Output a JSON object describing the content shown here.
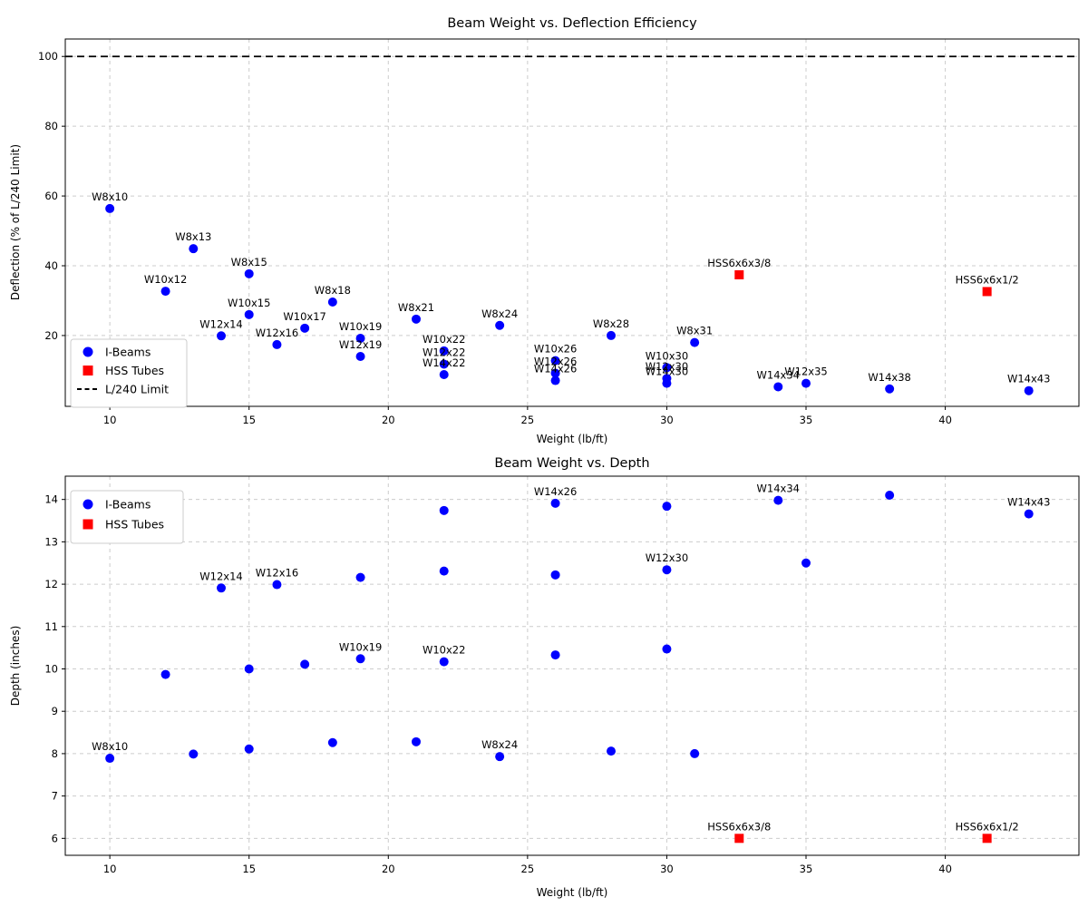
{
  "figure_background": "#ffffff",
  "colors": {
    "ibeams": "#0000ff",
    "hss_tubes": "#ff0000",
    "reference_line": "#000000",
    "grid": "#cccccc"
  },
  "chart_data": [
    {
      "type": "scatter",
      "title": "Beam Weight vs. Deflection Efficiency",
      "xlabel": "Weight (lb/ft)",
      "ylabel": "Deflection (% of L/240 Limit)",
      "xlim": [
        8.4,
        44.8
      ],
      "ylim": [
        -0.3,
        105
      ],
      "xticks": [
        10,
        15,
        20,
        25,
        30,
        35,
        40
      ],
      "yticks": [
        20,
        40,
        60,
        80,
        100
      ],
      "grid": true,
      "ref_line": {
        "y": 100,
        "label": "L/240 Limit",
        "color": "#000000",
        "style": "dashed"
      },
      "legend": {
        "position": "lower-left",
        "items": [
          {
            "label": "I-Beams",
            "marker": "circle",
            "color": "#0000ff"
          },
          {
            "label": "HSS Tubes",
            "marker": "square",
            "color": "#ff0000"
          },
          {
            "label": "L/240 Limit",
            "marker": "dashed-line",
            "color": "#000000"
          }
        ]
      },
      "series": [
        {
          "name": "I-Beams",
          "marker": "circle",
          "color": "#0000ff",
          "points": [
            {
              "label": "W8x10",
              "x": 10,
              "y": 56.4,
              "annotate": true
            },
            {
              "label": "W10x12",
              "x": 12,
              "y": 32.7,
              "annotate": true
            },
            {
              "label": "W8x13",
              "x": 13,
              "y": 44.9,
              "annotate": true
            },
            {
              "label": "W12x14",
              "x": 14,
              "y": 19.9,
              "annotate": true
            },
            {
              "label": "W8x15",
              "x": 15,
              "y": 37.7,
              "annotate": true
            },
            {
              "label": "W10x15",
              "x": 15,
              "y": 26.0,
              "annotate": true
            },
            {
              "label": "W12x16",
              "x": 16,
              "y": 17.4,
              "annotate": true
            },
            {
              "label": "W10x17",
              "x": 17,
              "y": 22.1,
              "annotate": true
            },
            {
              "label": "W8x18",
              "x": 18,
              "y": 29.6,
              "annotate": true
            },
            {
              "label": "W10x19",
              "x": 19,
              "y": 19.2,
              "annotate": true
            },
            {
              "label": "W12x19",
              "x": 19,
              "y": 14.0,
              "annotate": true
            },
            {
              "label": "W8x21",
              "x": 21,
              "y": 24.7,
              "annotate": true
            },
            {
              "label": "W10x22",
              "x": 22,
              "y": 15.6,
              "annotate": true
            },
            {
              "label": "W12x22",
              "x": 22,
              "y": 11.8,
              "annotate": true
            },
            {
              "label": "W14x22",
              "x": 22,
              "y": 8.8,
              "annotate": true
            },
            {
              "label": "W8x24",
              "x": 24,
              "y": 22.9,
              "annotate": true
            },
            {
              "label": "W10x26",
              "x": 26,
              "y": 12.8,
              "annotate": true
            },
            {
              "label": "W12x26",
              "x": 26,
              "y": 9.2,
              "annotate": true
            },
            {
              "label": "W14x26",
              "x": 26,
              "y": 7.1,
              "annotate": true
            },
            {
              "label": "W8x28",
              "x": 28,
              "y": 20.0,
              "annotate": true
            },
            {
              "label": "W10x30",
              "x": 30,
              "y": 10.8,
              "annotate": true
            },
            {
              "label": "W12x30",
              "x": 30,
              "y": 7.7,
              "annotate": true
            },
            {
              "label": "W14x30",
              "x": 30,
              "y": 6.3,
              "annotate": true
            },
            {
              "label": "W8x31",
              "x": 31,
              "y": 18.0,
              "annotate": true
            },
            {
              "label": "W14x34",
              "x": 34,
              "y": 5.3,
              "annotate": true
            },
            {
              "label": "W12x35",
              "x": 35,
              "y": 6.3,
              "annotate": true
            },
            {
              "label": "W14x38",
              "x": 38,
              "y": 4.7,
              "annotate": true
            },
            {
              "label": "W14x43",
              "x": 43,
              "y": 4.2,
              "annotate": true
            }
          ]
        },
        {
          "name": "HSS Tubes",
          "marker": "square",
          "color": "#ff0000",
          "points": [
            {
              "label": "HSS6x6x3/8",
              "x": 32.6,
              "y": 37.4,
              "annotate": true
            },
            {
              "label": "HSS6x6x1/2",
              "x": 41.5,
              "y": 32.6,
              "annotate": true
            }
          ]
        }
      ]
    },
    {
      "type": "scatter",
      "title": "Beam Weight vs. Depth",
      "xlabel": "Weight (lb/ft)",
      "ylabel": "Depth (inches)",
      "xlim": [
        8.4,
        44.8
      ],
      "ylim": [
        5.6,
        14.55
      ],
      "xticks": [
        10,
        15,
        20,
        25,
        30,
        35,
        40
      ],
      "yticks": [
        6,
        7,
        8,
        9,
        10,
        11,
        12,
        13,
        14
      ],
      "grid": true,
      "legend": {
        "position": "upper-left",
        "items": [
          {
            "label": "I-Beams",
            "marker": "circle",
            "color": "#0000ff"
          },
          {
            "label": "HSS Tubes",
            "marker": "square",
            "color": "#ff0000"
          }
        ]
      },
      "series": [
        {
          "name": "I-Beams",
          "marker": "circle",
          "color": "#0000ff",
          "points": [
            {
              "label": "W8x10",
              "x": 10,
              "y": 7.89,
              "annotate": true
            },
            {
              "label": "W10x12",
              "x": 12,
              "y": 9.87,
              "annotate": false
            },
            {
              "label": "W8x13",
              "x": 13,
              "y": 7.99,
              "annotate": false
            },
            {
              "label": "W12x14",
              "x": 14,
              "y": 11.91,
              "annotate": true
            },
            {
              "label": "W8x15",
              "x": 15,
              "y": 8.11,
              "annotate": false
            },
            {
              "label": "W10x15",
              "x": 15,
              "y": 10.0,
              "annotate": false
            },
            {
              "label": "W12x16",
              "x": 16,
              "y": 11.99,
              "annotate": true
            },
            {
              "label": "W10x17",
              "x": 17,
              "y": 10.11,
              "annotate": false
            },
            {
              "label": "W8x18",
              "x": 18,
              "y": 8.26,
              "annotate": false
            },
            {
              "label": "W10x19",
              "x": 19,
              "y": 10.24,
              "annotate": true
            },
            {
              "label": "W12x19",
              "x": 19,
              "y": 12.16,
              "annotate": false
            },
            {
              "label": "W8x21",
              "x": 21,
              "y": 8.28,
              "annotate": false
            },
            {
              "label": "W10x22",
              "x": 22,
              "y": 10.17,
              "annotate": true
            },
            {
              "label": "W12x22",
              "x": 22,
              "y": 12.31,
              "annotate": false
            },
            {
              "label": "W14x22",
              "x": 22,
              "y": 13.74,
              "annotate": false
            },
            {
              "label": "W8x24",
              "x": 24,
              "y": 7.93,
              "annotate": true
            },
            {
              "label": "W10x26",
              "x": 26,
              "y": 10.33,
              "annotate": false
            },
            {
              "label": "W12x26",
              "x": 26,
              "y": 12.22,
              "annotate": false
            },
            {
              "label": "W14x26",
              "x": 26,
              "y": 13.91,
              "annotate": true
            },
            {
              "label": "W8x28",
              "x": 28,
              "y": 8.06,
              "annotate": false
            },
            {
              "label": "W10x30",
              "x": 30,
              "y": 10.47,
              "annotate": false
            },
            {
              "label": "W12x30",
              "x": 30,
              "y": 12.34,
              "annotate": true
            },
            {
              "label": "W14x30",
              "x": 30,
              "y": 13.84,
              "annotate": false
            },
            {
              "label": "W8x31",
              "x": 31,
              "y": 8.0,
              "annotate": false
            },
            {
              "label": "W14x34",
              "x": 34,
              "y": 13.98,
              "annotate": true
            },
            {
              "label": "W12x35",
              "x": 35,
              "y": 12.5,
              "annotate": false
            },
            {
              "label": "W14x38",
              "x": 38,
              "y": 14.1,
              "annotate": false
            },
            {
              "label": "W14x43",
              "x": 43,
              "y": 13.66,
              "annotate": true
            }
          ]
        },
        {
          "name": "HSS Tubes",
          "marker": "square",
          "color": "#ff0000",
          "points": [
            {
              "label": "HSS6x6x3/8",
              "x": 32.6,
              "y": 6.0,
              "annotate": true
            },
            {
              "label": "HSS6x6x1/2",
              "x": 41.5,
              "y": 6.0,
              "annotate": true
            }
          ]
        }
      ]
    }
  ]
}
